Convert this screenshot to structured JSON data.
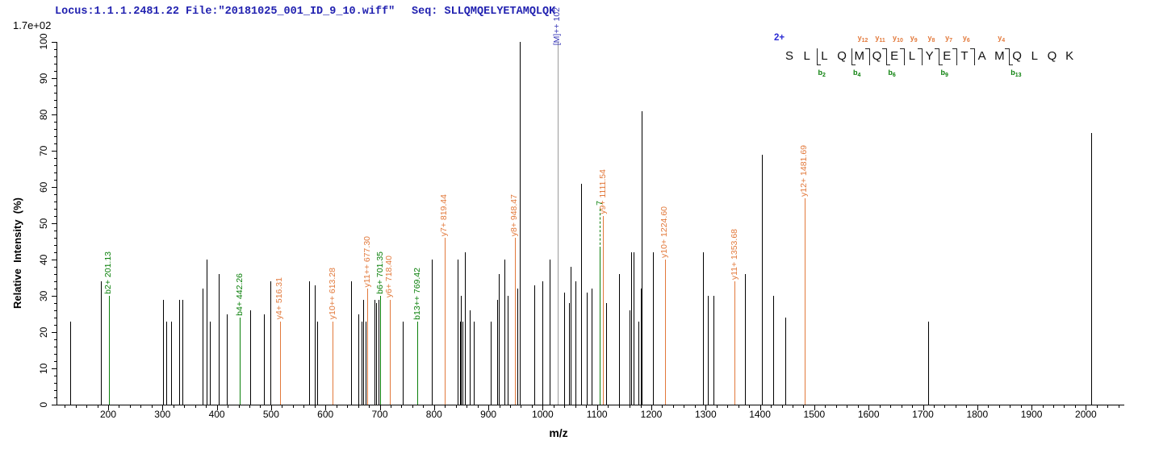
{
  "header": {
    "locus_file": "Locus:1.1.1.2481.22 File:\"20181025_001_ID_9_10.wiff\"",
    "seq": "Seq: SLLQMQELYETAMQLQK"
  },
  "y_scale_label": "1.7e+02",
  "axes": {
    "x_label": "m/z",
    "y_label": "Relative  Intensity  (%)",
    "x_ticks": [
      200,
      300,
      400,
      500,
      600,
      700,
      800,
      900,
      1000,
      1100,
      1200,
      1300,
      1400,
      1500,
      1600,
      1700,
      1800,
      1900,
      2000
    ],
    "y_ticks": [
      0,
      10,
      20,
      30,
      40,
      50,
      60,
      70,
      80,
      90,
      100
    ]
  },
  "sequence_panel": {
    "charge_label": "2+",
    "residues": [
      "S",
      "L",
      "L",
      "Q",
      "M",
      "Q",
      "E",
      "L",
      "Y",
      "E",
      "T",
      "A",
      "M",
      "Q",
      "L",
      "Q",
      "K"
    ],
    "cleavages": [
      {
        "gap": 1,
        "b": "2"
      },
      {
        "gap": 3,
        "b": "4"
      },
      {
        "gap": 4,
        "y": "12"
      },
      {
        "gap": 5,
        "b": "6",
        "y": "11"
      },
      {
        "gap": 6,
        "y": "10"
      },
      {
        "gap": 7,
        "y": "9"
      },
      {
        "gap": 8,
        "b": "9",
        "y": "8"
      },
      {
        "gap": 9,
        "y": "7"
      },
      {
        "gap": 10,
        "y": "6"
      },
      {
        "gap": 12,
        "b": "13",
        "y": "4"
      }
    ]
  },
  "colors": {
    "peak": "#000000",
    "y_ion": "#e2793b",
    "b_ion": "#0b800b",
    "precursor_line": "#9a9a9a",
    "precursor_label": "#3a3ab8",
    "header_blue": "#2121b0",
    "charge_blue": "#2b2bd4"
  },
  "chart_data": {
    "type": "bar",
    "title": "MS/MS fragmentation spectrum",
    "xlabel": "m/z",
    "ylabel": "Relative  Intensity  (%)",
    "xlim": [
      105,
      2070
    ],
    "ylim": [
      0,
      100
    ],
    "intensity_scale_max": "1.7e+02",
    "peaks": [
      [
        130,
        23
      ],
      [
        187,
        34
      ],
      [
        301,
        29
      ],
      [
        307,
        23
      ],
      [
        316,
        23
      ],
      [
        331,
        29
      ],
      [
        337,
        29
      ],
      [
        374,
        32
      ],
      [
        381,
        40
      ],
      [
        387,
        23
      ],
      [
        404,
        36
      ],
      [
        418,
        25
      ],
      [
        462,
        26
      ],
      [
        487,
        25
      ],
      [
        499,
        34
      ],
      [
        570,
        34
      ],
      [
        580,
        33
      ],
      [
        585,
        23
      ],
      [
        647,
        34
      ],
      [
        660,
        25
      ],
      [
        666,
        23
      ],
      [
        670,
        29
      ],
      [
        674,
        23
      ],
      [
        690,
        29
      ],
      [
        694,
        28
      ],
      [
        698,
        29
      ],
      [
        742,
        23
      ],
      [
        796,
        40
      ],
      [
        843,
        40
      ],
      [
        848,
        23
      ],
      [
        850,
        30
      ],
      [
        853,
        23
      ],
      [
        857,
        42
      ],
      [
        866,
        26
      ],
      [
        873,
        23
      ],
      [
        904,
        23
      ],
      [
        916,
        29
      ],
      [
        919,
        36
      ],
      [
        930,
        40
      ],
      [
        935,
        30
      ],
      [
        954,
        32
      ],
      [
        958,
        100
      ],
      [
        984,
        33
      ],
      [
        1000,
        34
      ],
      [
        1013,
        40
      ],
      [
        1039,
        31
      ],
      [
        1049,
        28
      ],
      [
        1052,
        38
      ],
      [
        1061,
        34
      ],
      [
        1070,
        61
      ],
      [
        1081,
        31
      ],
      [
        1090,
        32
      ],
      [
        1117,
        28
      ],
      [
        1141,
        36
      ],
      [
        1160,
        26
      ],
      [
        1163,
        42
      ],
      [
        1168,
        42
      ],
      [
        1176,
        23
      ],
      [
        1180,
        32
      ],
      [
        1182,
        81
      ],
      [
        1203,
        42
      ],
      [
        1295,
        42
      ],
      [
        1304,
        30
      ],
      [
        1314,
        30
      ],
      [
        1373,
        36
      ],
      [
        1403,
        69
      ],
      [
        1424,
        30
      ],
      [
        1446,
        24
      ],
      [
        1710,
        23
      ],
      [
        2010,
        75
      ]
    ],
    "annotations": [
      {
        "label": "b2+ 201.13",
        "mz": 201.13,
        "intensity": 30,
        "ion": "b"
      },
      {
        "label": "b4+ 442.26",
        "mz": 442.26,
        "intensity": 24,
        "ion": "b"
      },
      {
        "label": "y4+ 516.31",
        "mz": 516.31,
        "intensity": 23,
        "ion": "y"
      },
      {
        "label": "y10++ 613.28",
        "mz": 613.28,
        "intensity": 23,
        "ion": "y"
      },
      {
        "label": "y11++ 677.30",
        "mz": 677.3,
        "intensity": 32,
        "ion": "y"
      },
      {
        "label": "b6+ 701.35",
        "mz": 701.35,
        "intensity": 30,
        "ion": "b"
      },
      {
        "label": "y6+ 718.40",
        "mz": 718.4,
        "intensity": 29,
        "ion": "y"
      },
      {
        "label": "b13++ 769.42",
        "mz": 769.42,
        "intensity": 23,
        "ion": "b"
      },
      {
        "label": "y7+ 819.44",
        "mz": 819.44,
        "intensity": 46,
        "ion": "y"
      },
      {
        "label": "y8+ 948.47",
        "mz": 948.47,
        "intensity": 46,
        "ion": "y"
      },
      {
        "label": "[M]++ 102",
        "mz": 1027.5,
        "intensity": 100,
        "ion": "precursor"
      },
      {
        "label": "7",
        "mz": 1105,
        "intensity": 43,
        "ion": "b",
        "dashed": true
      },
      {
        "label": "y9+ 1111.54",
        "mz": 1111.54,
        "intensity": 52,
        "ion": "y"
      },
      {
        "label": "y10+ 1224.60",
        "mz": 1224.6,
        "intensity": 40,
        "ion": "y"
      },
      {
        "label": "y11+ 1353.68",
        "mz": 1353.68,
        "intensity": 34,
        "ion": "y"
      },
      {
        "label": "y12+ 1481.69",
        "mz": 1481.69,
        "intensity": 57,
        "ion": "y"
      }
    ]
  }
}
